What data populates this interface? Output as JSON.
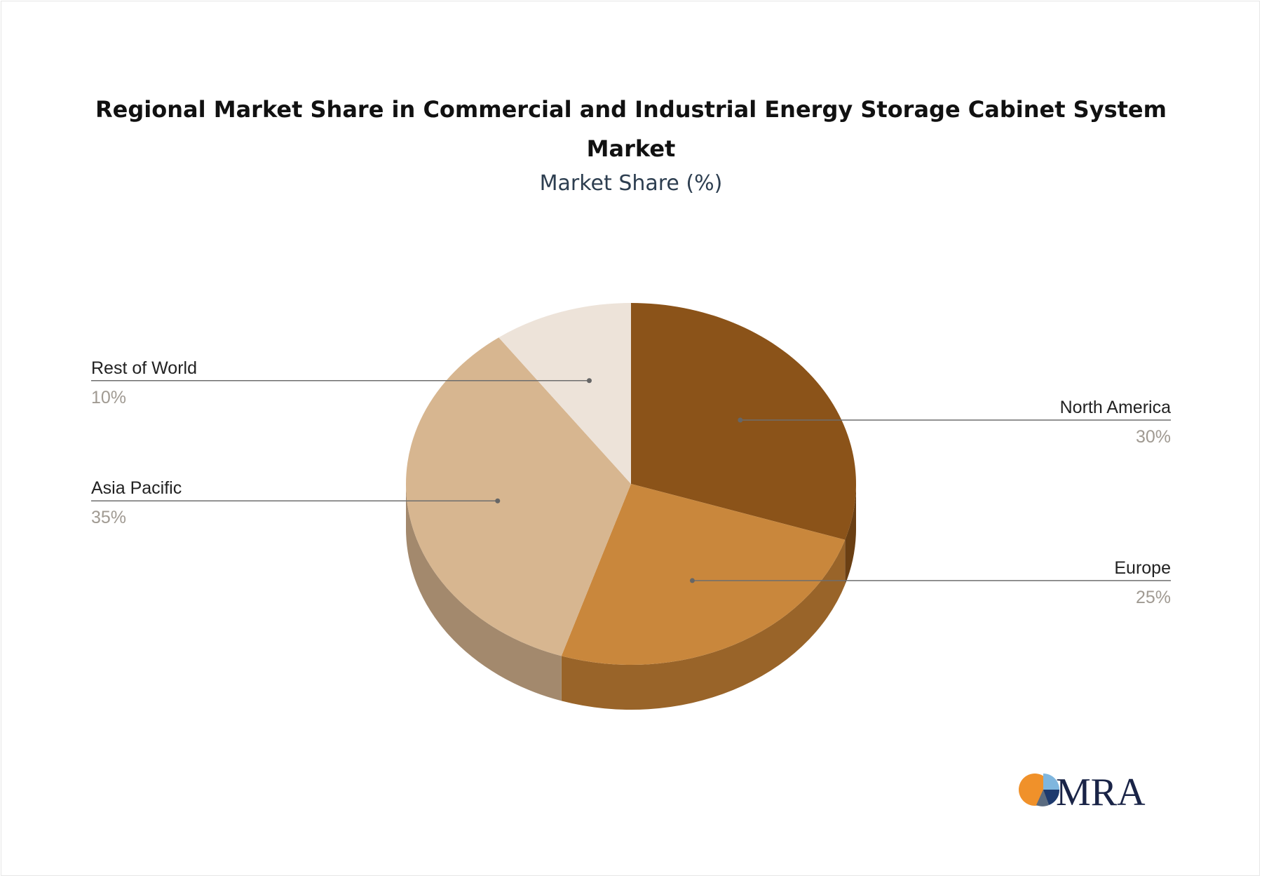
{
  "chart_data": {
    "type": "pie",
    "title": "Regional Market Share in Commercial and Industrial Energy Storage Cabinet System Market",
    "subtitle": "Market Share (%)",
    "slices": [
      {
        "label": "North America",
        "value": 30,
        "display": "30%",
        "color": "#8b5319",
        "side_color": "#6a3f13"
      },
      {
        "label": "Europe",
        "value": 25,
        "display": "25%",
        "color": "#c9873c",
        "side_color": "#996429"
      },
      {
        "label": "Asia Pacific",
        "value": 35,
        "display": "35%",
        "color": "#d7b690",
        "side_color": "#a3896d"
      },
      {
        "label": "Rest of World",
        "value": 10,
        "display": "10%",
        "color": "#ede3d9",
        "side_color": "#b3aba4"
      }
    ],
    "legend": "none",
    "three_d": true
  },
  "logo": {
    "text": "MRA",
    "colors": [
      "#f0912a",
      "#1d3a6e",
      "#7fb6de",
      "#5a6b80"
    ]
  }
}
